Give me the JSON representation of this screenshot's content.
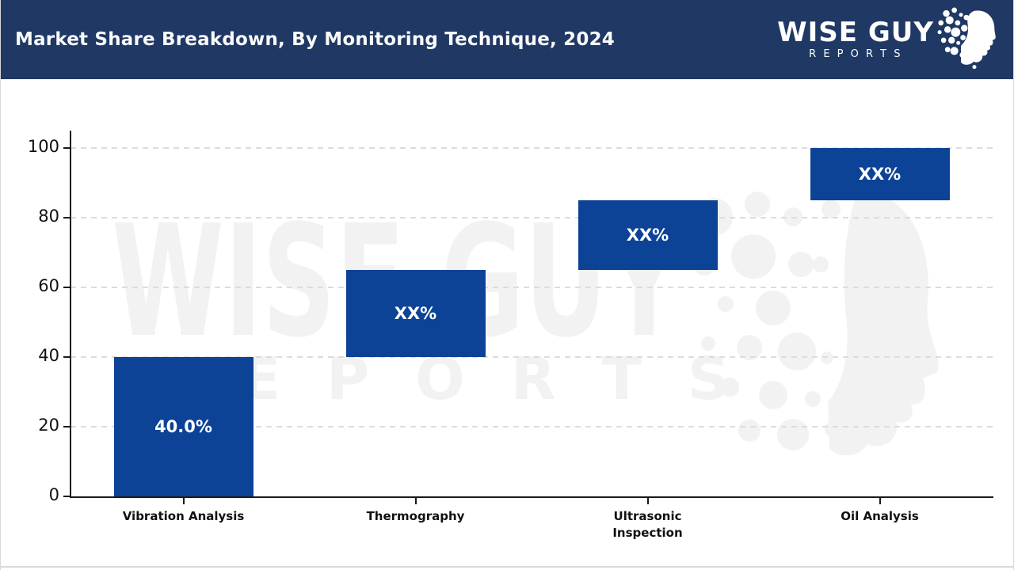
{
  "header": {
    "title": "Market Share Breakdown, By Monitoring Technique, 2024",
    "logo": {
      "line1": "WISE GUY",
      "line2": "R E P O R T S"
    }
  },
  "watermark": {
    "line1": "WISE GUY",
    "line2": "R E P O R T S"
  },
  "colors": {
    "header_bg": "#1f3864",
    "bar_blue": "#0c4397",
    "grid": "#dcdcdc",
    "axis": "#1a1a1a",
    "watermark": "#f2f2f2",
    "bar_label": "#ffffff"
  },
  "chart_data": {
    "type": "bar",
    "variant": "floating-stacked-steps",
    "title": "Market Share Breakdown, By Monitoring Technique, 2024",
    "categories": [
      "Vibration Analysis",
      "Thermography",
      "Ultrasonic\nInspection",
      "Oil Analysis"
    ],
    "bars": [
      {
        "category": "Vibration Analysis",
        "start": 0,
        "end": 40,
        "value": 40,
        "label": "40.0%"
      },
      {
        "category": "Thermography",
        "start": 40,
        "end": 65,
        "value": 25,
        "label": "XX%"
      },
      {
        "category": "Ultrasonic\nInspection",
        "start": 65,
        "end": 85,
        "value": 20,
        "label": "XX%"
      },
      {
        "category": "Oil Analysis",
        "start": 85,
        "end": 100,
        "value": 15,
        "label": "XX%"
      }
    ],
    "yticks": [
      0,
      20,
      40,
      60,
      80,
      100
    ],
    "ylim": [
      0,
      105
    ],
    "xlabel": "",
    "ylabel": "",
    "grid": "horizontal-dashed",
    "legend": "none",
    "bar_color": "#0c4397",
    "value_label_color": "#ffffff"
  }
}
